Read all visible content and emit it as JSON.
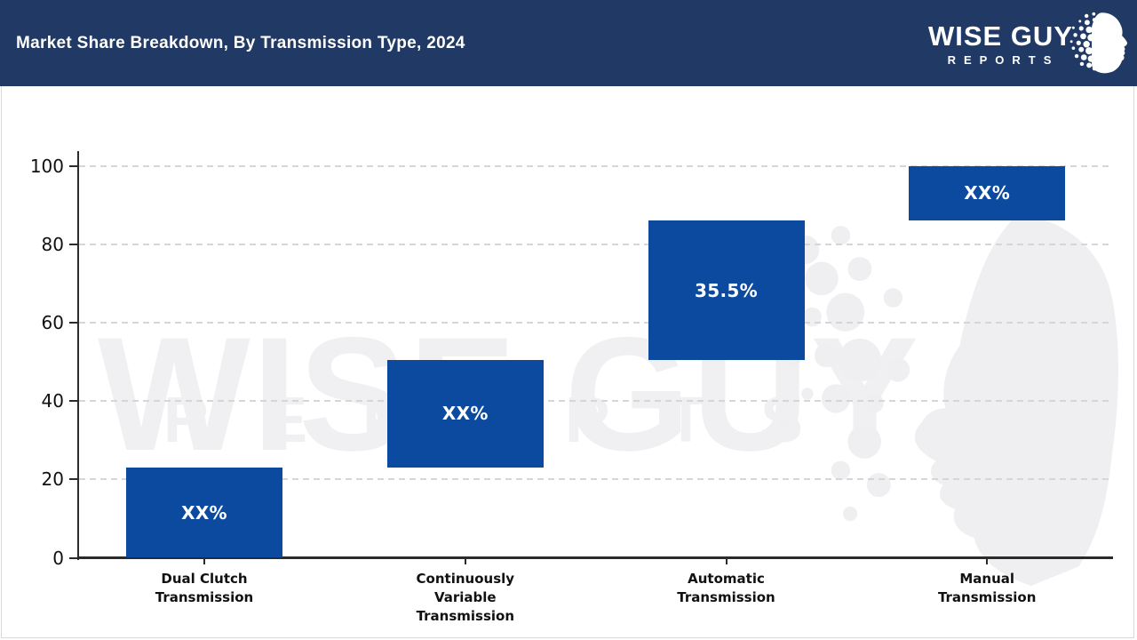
{
  "header": {
    "title": "Market Share Breakdown, By Transmission Type, 2024",
    "bg_color": "#203a65",
    "logo_name": "WISE GUY",
    "logo_sub": "REPORTS"
  },
  "watermark": {
    "line1": "WISE GUY",
    "line2": "REPORTS"
  },
  "chart_data": {
    "type": "bar",
    "variant": "waterfall",
    "title": "Market Share Breakdown, By Transmission Type, 2024",
    "categories": [
      "Dual Clutch Transmission",
      "Continuously Variable Transmission",
      "Automatic Transmission",
      "Manual Transmission"
    ],
    "categories_display": [
      "Dual Clutch\nTransmission",
      "Continuously\nVariable\nTransmission",
      "Automatic\nTransmission",
      "Manual\nTransmission"
    ],
    "segments": [
      {
        "category": "Dual Clutch Transmission",
        "start": 0,
        "end": 23,
        "value": 23,
        "value_label": "XX%"
      },
      {
        "category": "Continuously Variable Transmission",
        "start": 23,
        "end": 50.5,
        "value": 27.5,
        "value_label": "XX%"
      },
      {
        "category": "Automatic Transmission",
        "start": 50.5,
        "end": 86,
        "value": 35.5,
        "value_label": "35.5%"
      },
      {
        "category": "Manual Transmission",
        "start": 86,
        "end": 100,
        "value": 14,
        "value_label": "XX%"
      }
    ],
    "yticks": [
      0,
      20,
      40,
      60,
      80,
      100
    ],
    "ylim": [
      0,
      103.6
    ],
    "xlabel": "",
    "ylabel": "",
    "grid": "horizontal-dashed",
    "legend": "none",
    "bar_color": "#0b4a9e",
    "bar_label_color": "#ffffff"
  }
}
